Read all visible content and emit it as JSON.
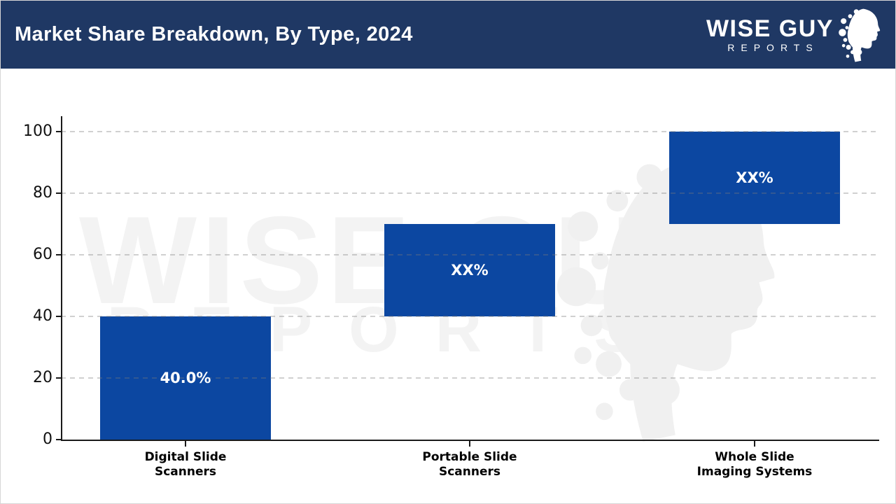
{
  "header": {
    "title": "Market Share Breakdown, By Type, 2024",
    "logo": {
      "line1": "WISE GUY",
      "line2": "REPORTS"
    }
  },
  "watermark": {
    "line1": "WISE GUY",
    "line2": "REPORTS"
  },
  "colors": {
    "header_bg": "#1f3864",
    "bar": "#0c47a1",
    "bar_label": "#ffffff",
    "axis": "#1a1a1a",
    "gridline": "#d9d9d9",
    "watermark": "#f3f3f3"
  },
  "chart_data": {
    "type": "bar",
    "subtype": "waterfall",
    "title": "Market Share Breakdown, By Type, 2024",
    "categories": [
      {
        "line1": "Digital Slide",
        "line2": "Scanners"
      },
      {
        "line1": "Portable Slide",
        "line2": "Scanners"
      },
      {
        "line1": "Whole Slide",
        "line2": "Imaging Systems"
      }
    ],
    "segments": [
      {
        "category": "Digital Slide Scanners",
        "base": 0,
        "top": 40,
        "label": "40.0%"
      },
      {
        "category": "Portable Slide Scanners",
        "base": 40,
        "top": 70,
        "label": "XX%"
      },
      {
        "category": "Whole Slide Imaging Systems",
        "base": 70,
        "top": 100,
        "label": "XX%"
      }
    ],
    "yticks": [
      0,
      20,
      40,
      60,
      80,
      100
    ],
    "ylim": [
      0,
      105
    ],
    "xlabel": "",
    "ylabel": "",
    "grid": "horizontal-dashed",
    "legend": "none",
    "bar_color": "#0c47a1",
    "bar_label_color": "#ffffff"
  }
}
